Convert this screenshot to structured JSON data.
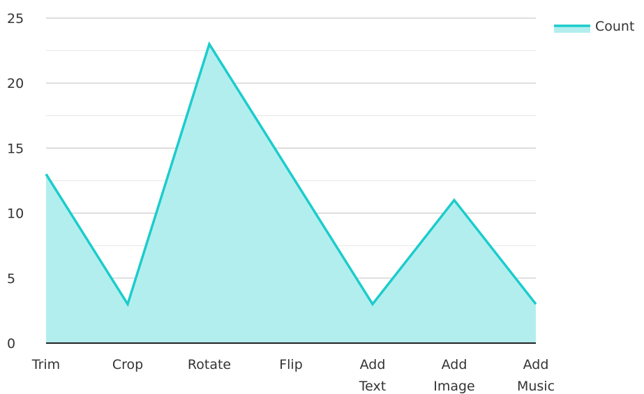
{
  "chart_data": {
    "type": "area",
    "categories": [
      "Trim",
      "Crop",
      "Rotate",
      "Flip",
      "Add Text",
      "Add Image",
      "Add Music"
    ],
    "series": [
      {
        "name": "Count",
        "values": [
          13,
          3,
          23,
          13,
          3,
          11,
          3
        ]
      }
    ],
    "y_ticks": [
      "0",
      "5",
      "10",
      "15",
      "20",
      "25"
    ],
    "ylim": [
      0,
      25
    ],
    "grid": true,
    "legend_position": "top-right",
    "colors": {
      "line": "#1ccccc",
      "fill": "#b3eeee",
      "grid_major": "#c9c9c9",
      "grid_minor": "#e6e6e6",
      "axis": "#222222"
    }
  }
}
